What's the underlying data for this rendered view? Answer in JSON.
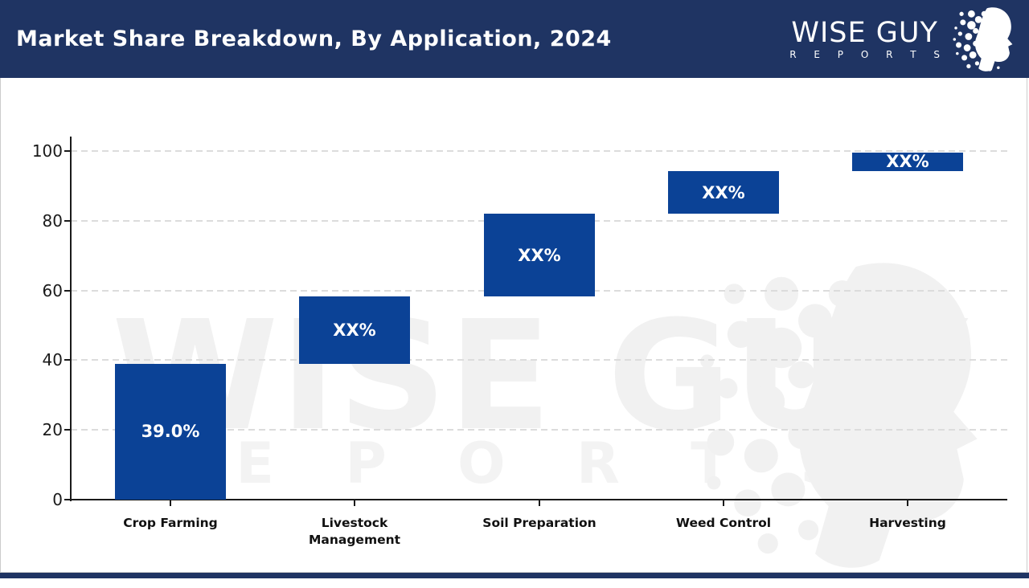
{
  "header": {
    "title": "Market Share Breakdown, By Application, 2024",
    "logo": {
      "line1": "WISE GUY",
      "line2": "R E P O R T S"
    }
  },
  "watermark": {
    "line1": "WISE GUY",
    "line2": "R E P O R T S"
  },
  "colors": {
    "header_bg": "#1f3463",
    "footer_bg": "#1f3463",
    "bar": "#0b4296",
    "bar_label": "#ffffff",
    "grid": "#dcdcdc",
    "axis": "#1a1a1a",
    "watermark": "#f1f1f1"
  },
  "chart_data": {
    "type": "bar",
    "subtype": "waterfall",
    "title": "Market Share Breakdown, By Application, 2024",
    "xlabel": "",
    "ylabel": "",
    "ylim": [
      0,
      105
    ],
    "yticks": [
      0,
      20,
      40,
      60,
      80,
      100
    ],
    "grid": true,
    "legend": "none",
    "categories": [
      "Crop Farming",
      "Livestock Management",
      "Soil Preparation",
      "Weed Control",
      "Harvesting"
    ],
    "bars": [
      {
        "category": "Crop Farming",
        "start": 0,
        "end": 39,
        "label": "39.0%"
      },
      {
        "category": "Livestock Management",
        "start": 39,
        "end": 58.3,
        "label": "XX%"
      },
      {
        "category": "Soil Preparation",
        "start": 58.3,
        "end": 82,
        "label": "XX%"
      },
      {
        "category": "Weed Control",
        "start": 82,
        "end": 94.2,
        "label": "XX%"
      },
      {
        "category": "Harvesting",
        "start": 94.2,
        "end": 99.6,
        "label": "XX%"
      }
    ]
  }
}
